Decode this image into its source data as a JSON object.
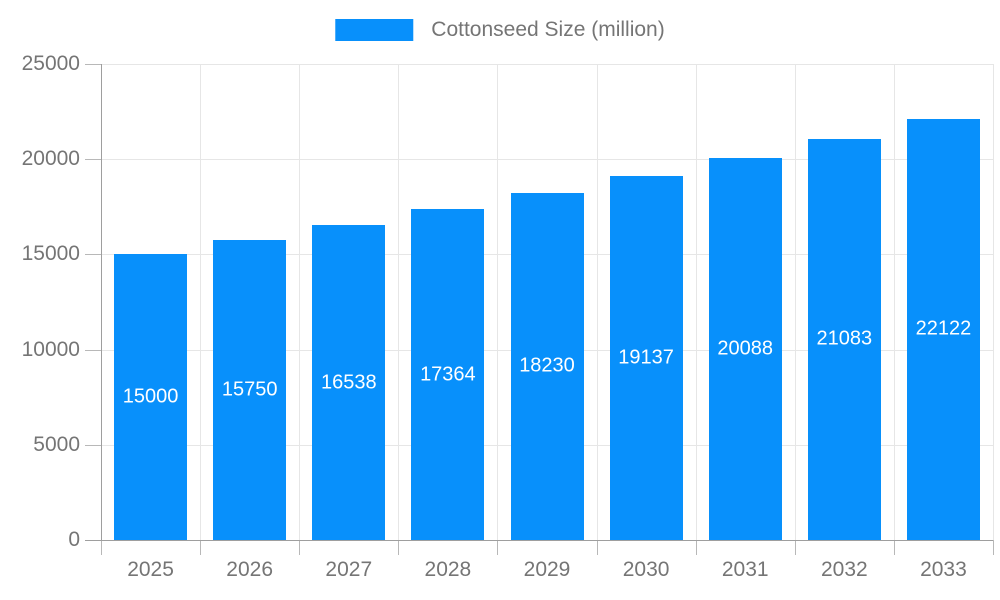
{
  "legend": {
    "label": "Cottonseed Size (million)"
  },
  "colors": {
    "bar": "#0890fb",
    "grid": "#e6e6e6",
    "axis": "#9e9e9e",
    "tick": "#b8b8b8",
    "text": "#757575",
    "bar_label": "#ffffff",
    "background": "#ffffff"
  },
  "chart_data": {
    "type": "bar",
    "title": "",
    "series": [
      {
        "name": "Cottonseed Size (million)",
        "values": [
          15000,
          15750,
          16538,
          17364,
          18230,
          19137,
          20088,
          21083,
          22122
        ]
      }
    ],
    "categories": [
      "2025",
      "2026",
      "2027",
      "2028",
      "2029",
      "2030",
      "2031",
      "2032",
      "2033"
    ],
    "data_labels": [
      "15000",
      "15750",
      "16538",
      "17364",
      "18230",
      "19137",
      "20088",
      "21083",
      "22122"
    ],
    "data_labels_position": "inside-center",
    "xlabel": "",
    "ylabel": "",
    "ylim": [
      0,
      25000
    ],
    "yticks": [
      0,
      5000,
      10000,
      15000,
      20000,
      25000
    ],
    "grid": "both",
    "legend_position": "top-center"
  }
}
